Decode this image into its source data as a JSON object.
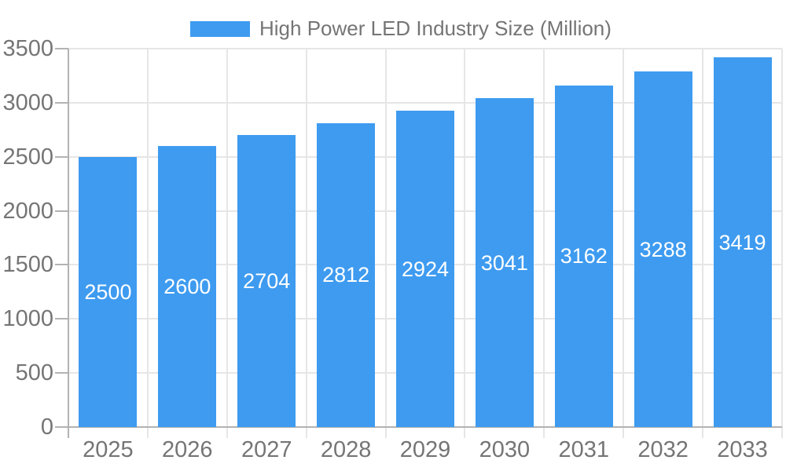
{
  "chart_data": {
    "type": "bar",
    "title": "High Power LED Industry Size (Million)",
    "categories": [
      "2025",
      "2026",
      "2027",
      "2028",
      "2029",
      "2030",
      "2031",
      "2032",
      "2033"
    ],
    "values": [
      2500,
      2600,
      2704,
      2812,
      2924,
      3041,
      3162,
      3288,
      3419
    ],
    "series": [
      {
        "name": "High Power LED Industry Size (Million)",
        "values": [
          2500,
          2600,
          2704,
          2812,
          2924,
          3041,
          3162,
          3288,
          3419
        ]
      }
    ],
    "xlabel": "",
    "ylabel": "",
    "ylim": [
      0,
      3500
    ],
    "y_ticks": [
      0,
      500,
      1000,
      1500,
      2000,
      2500,
      3000,
      3500
    ],
    "grid": true,
    "legend_position": "top",
    "value_labels": "inside-center",
    "colors": {
      "bar": "#3E9BF0",
      "bar_label_text": "#ffffff",
      "axis_text": "#757575",
      "legend_text": "#757575",
      "gridline": "#e6e6e6",
      "axis_line": "#b3b3b3",
      "background": "#ffffff"
    }
  }
}
